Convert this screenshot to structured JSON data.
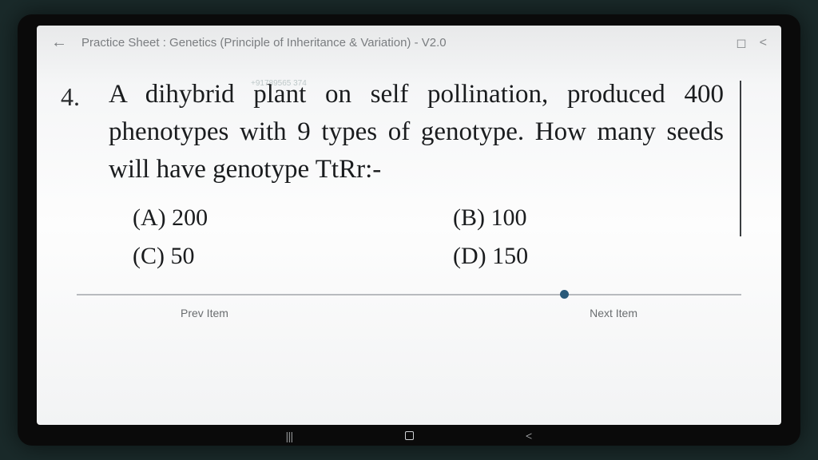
{
  "header": {
    "title": "Practice Sheet : Genetics (Principle of Inheritance & Variation) - V2.0"
  },
  "question": {
    "number": "4.",
    "text": "A dihybrid plant on self pollination, produced 400 phenotypes with 9 types of genotype. How many seeds will have genotype TtRr:-",
    "watermark": "+91789565 374",
    "options": {
      "a": "(A) 200",
      "b": "(B) 100",
      "c": "(C) 50",
      "d": "(D) 150"
    }
  },
  "nav": {
    "prev": "Prev Item",
    "next": "Next Item"
  },
  "colors": {
    "screen_bg": "#f5f6f7",
    "text_primary": "#1a1c1e",
    "text_muted": "#7a7d80",
    "progress_dot": "#2a5a7a",
    "divider": "#3a3d40"
  }
}
